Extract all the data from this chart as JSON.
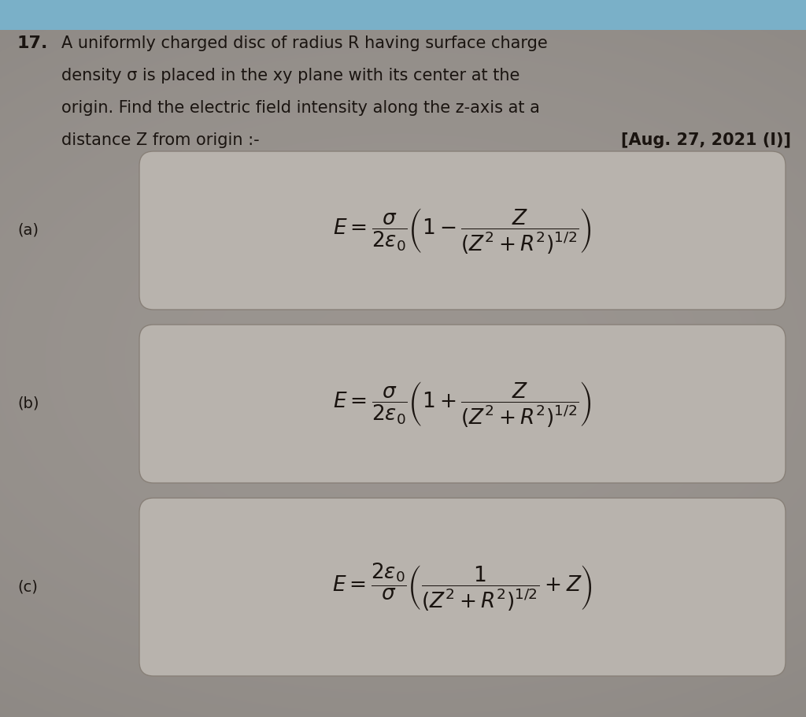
{
  "background_color": "#9a9590",
  "header_color": "#7ab0c8",
  "box_fill_color": "#b8b3ad",
  "box_edge_color": "#888078",
  "question_number": "17.",
  "question_text_line1": "A uniformly charged disc of radius R having surface charge",
  "question_text_line2": "density σ is placed in the xy plane with its center at the",
  "question_text_line3": "origin. Find the electric field intensity along the z-axis at a",
  "question_text_line4": "distance Z from origin :-",
  "reference": "[Aug. 27, 2021 (I)]",
  "option_a_label": "(a)",
  "option_b_label": "(b)",
  "option_c_label": "(c)",
  "font_size_question": 15,
  "font_size_options": 14,
  "text_color": "#1a1410",
  "formula_a": "$E = \\dfrac{\\sigma}{2\\varepsilon_0}\\left(1-\\dfrac{Z}{\\left(Z^2+R^2\\right)^{1/2}}\\right)$",
  "formula_b": "$E = \\dfrac{\\sigma}{2\\varepsilon_0}\\left(1+\\dfrac{Z}{\\left(Z^2+R^2\\right)^{1/2}}\\right)$",
  "formula_c": "$E = \\dfrac{2\\varepsilon_0}{\\sigma}\\left(\\dfrac{1}{\\left(Z^2+R^2\\right)^{1/2}}+Z\\right)$"
}
